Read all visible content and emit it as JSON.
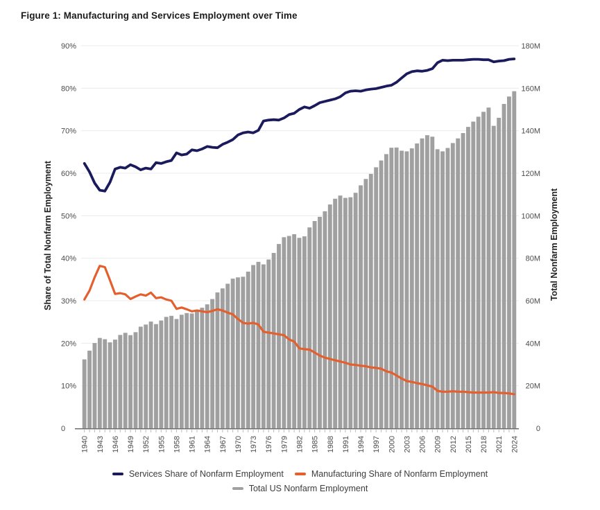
{
  "title": "Figure 1: Manufacturing and Services Employment over Time",
  "chart_data": {
    "type": "combo-bar-line",
    "grid": true,
    "legend_position": "bottom",
    "x_axis": {
      "start_year": 1940,
      "end_year": 2024,
      "tick_labels": [
        "1940",
        "1943",
        "1946",
        "1949",
        "1952",
        "1955",
        "1958",
        "1961",
        "1964",
        "1967",
        "1970",
        "1973",
        "1976",
        "1979",
        "1982",
        "1985",
        "1988",
        "1991",
        "1994",
        "1997",
        "2000",
        "2003",
        "2006",
        "2009",
        "2012",
        "2015",
        "2018",
        "2021",
        "2024"
      ]
    },
    "left_axis": {
      "title": "Share of Total Nonfarm Employment",
      "min": 0,
      "max": 90,
      "unit": "%",
      "tick_labels": [
        "90%",
        "80%",
        "70%",
        "60%",
        "50%",
        "40%",
        "30%",
        "20%",
        "10%",
        "0"
      ]
    },
    "right_axis": {
      "title": "Total Nonfarm Employment",
      "min": 0,
      "max": 180,
      "unit": "M",
      "tick_labels": [
        "180M",
        "160M",
        "140M",
        "120M",
        "100M",
        "80M",
        "60M",
        "40M",
        "20M",
        "0"
      ]
    },
    "series": [
      {
        "name": "Services Share of Nonfarm Employment",
        "kind": "line",
        "axis": "left",
        "color": "#1a1a5c",
        "values": [
          62.3,
          60.3,
          57.7,
          56.0,
          55.8,
          57.9,
          61.0,
          61.4,
          61.2,
          62.0,
          61.5,
          60.8,
          61.2,
          61.0,
          62.5,
          62.3,
          62.7,
          63.0,
          64.8,
          64.3,
          64.5,
          65.5,
          65.3,
          65.7,
          66.3,
          66.1,
          66.0,
          66.8,
          67.3,
          67.9,
          69.0,
          69.5,
          69.7,
          69.5,
          70.1,
          72.3,
          72.5,
          72.6,
          72.5,
          73.0,
          73.8,
          74.1,
          75.0,
          75.6,
          75.3,
          75.9,
          76.6,
          76.9,
          77.2,
          77.5,
          78.0,
          78.9,
          79.3,
          79.4,
          79.3,
          79.6,
          79.8,
          79.9,
          80.2,
          80.5,
          80.7,
          81.4,
          82.4,
          83.4,
          83.9,
          84.1,
          84.0,
          84.2,
          84.6,
          86.0,
          86.6,
          86.5,
          86.6,
          86.6,
          86.6,
          86.7,
          86.8,
          86.8,
          86.7,
          86.7,
          86.2,
          86.4,
          86.5,
          86.8,
          86.9
        ]
      },
      {
        "name": "Manufacturing Share of Nonfarm Employment",
        "kind": "line",
        "axis": "left",
        "color": "#e45f2e",
        "values": [
          30.3,
          32.4,
          35.5,
          38.2,
          37.9,
          34.8,
          31.6,
          31.8,
          31.5,
          30.4,
          31.0,
          31.5,
          31.2,
          31.9,
          30.6,
          30.8,
          30.3,
          30.0,
          28.1,
          28.4,
          28.0,
          27.5,
          27.7,
          27.5,
          27.3,
          27.6,
          28.0,
          27.7,
          27.2,
          26.8,
          25.7,
          24.8,
          24.6,
          24.8,
          24.4,
          22.7,
          22.5,
          22.3,
          22.1,
          21.9,
          20.9,
          20.4,
          18.8,
          18.6,
          18.5,
          17.8,
          17.1,
          16.6,
          16.3,
          16.0,
          15.7,
          15.4,
          15.0,
          14.9,
          14.7,
          14.6,
          14.3,
          14.2,
          14.0,
          13.4,
          13.1,
          12.4,
          11.7,
          11.1,
          10.9,
          10.6,
          10.4,
          10.1,
          9.8,
          8.8,
          8.6,
          8.6,
          8.7,
          8.6,
          8.6,
          8.5,
          8.4,
          8.4,
          8.4,
          8.4,
          8.5,
          8.3,
          8.3,
          8.2,
          8.0
        ]
      },
      {
        "name": "Total US Nonfarm Employment",
        "kind": "bar",
        "axis": "right",
        "color": "#a0a0a0",
        "values": [
          32.4,
          36.5,
          40.1,
          42.5,
          41.9,
          40.4,
          41.7,
          43.9,
          44.9,
          43.8,
          45.2,
          47.8,
          48.8,
          50.2,
          49.0,
          50.7,
          52.4,
          52.9,
          51.4,
          53.4,
          54.2,
          54.0,
          55.5,
          56.7,
          58.3,
          60.8,
          63.9,
          65.8,
          68.0,
          70.4,
          71.0,
          71.3,
          73.7,
          76.8,
          78.3,
          77.1,
          79.4,
          82.5,
          86.7,
          89.9,
          90.5,
          91.3,
          89.6,
          90.3,
          94.5,
          97.5,
          99.5,
          102.1,
          105.3,
          108.0,
          109.5,
          108.4,
          108.7,
          110.8,
          114.3,
          117.3,
          119.7,
          122.8,
          126.0,
          129.0,
          132.0,
          132.1,
          130.6,
          130.3,
          131.7,
          134.0,
          136.4,
          137.9,
          137.2,
          131.3,
          130.3,
          131.9,
          134.2,
          136.4,
          138.9,
          141.8,
          144.3,
          146.6,
          148.9,
          150.9,
          142.3,
          146.1,
          152.6,
          156.1,
          158.6
        ]
      }
    ]
  },
  "colors": {
    "gridline": "#ebebeb",
    "baseline": "#6e6e6e",
    "tick_label": "#4c4c4c",
    "year_tick": "#bcbcbc"
  }
}
